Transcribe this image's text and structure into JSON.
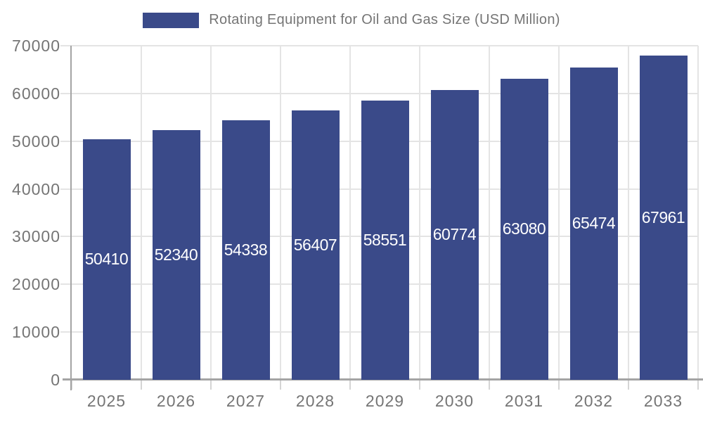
{
  "chart_data": {
    "type": "bar",
    "title": "Rotating Equipment for Oil and Gas Size (USD Million)",
    "xlabel": "",
    "ylabel": "",
    "categories": [
      "2025",
      "2026",
      "2027",
      "2028",
      "2029",
      "2030",
      "2031",
      "2032",
      "2033"
    ],
    "values": [
      50410,
      52340,
      54338,
      56407,
      58551,
      60774,
      63080,
      65474,
      67961
    ],
    "ylim": [
      0,
      70000
    ],
    "yticks": [
      0,
      10000,
      20000,
      30000,
      40000,
      50000,
      60000,
      70000
    ],
    "grid": true,
    "legend_position": "top",
    "value_label_position": "inside-center",
    "colors": {
      "bar": "#3A4A89",
      "bar_label": "#FFFFFF",
      "axis_text": "#757575",
      "grid_line": "#E4E4E4",
      "axis_line": "#A4A4A4",
      "tick": "#D5D5D5",
      "background": "#FFFFFF"
    }
  }
}
